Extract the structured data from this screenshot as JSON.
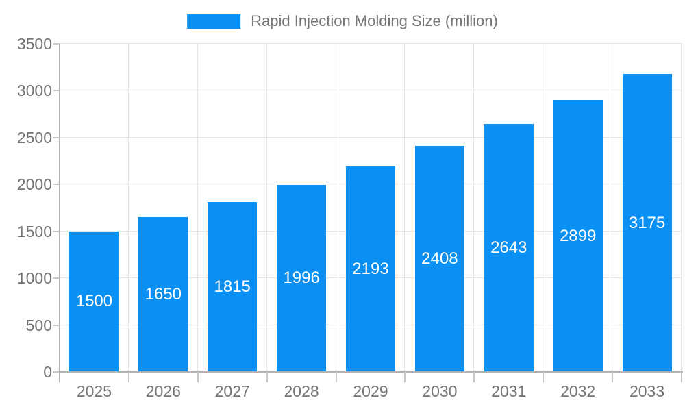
{
  "chart_data": {
    "type": "bar",
    "title": "Rapid Injection Molding Size (million)",
    "categories": [
      "2025",
      "2026",
      "2027",
      "2028",
      "2029",
      "2030",
      "2031",
      "2032",
      "2033"
    ],
    "values": [
      1500,
      1650,
      1815,
      1996,
      2193,
      2408,
      2643,
      2899,
      3175
    ],
    "xlabel": "",
    "ylabel": "",
    "ylim": [
      0,
      3500
    ],
    "yticks": [
      0,
      500,
      1000,
      1500,
      2000,
      2500,
      3000,
      3500
    ],
    "grid": true,
    "legend_position": "top-center",
    "colors": {
      "bar": "#0a90f2",
      "value_label": "#ffffff",
      "axis_text": "#757575",
      "grid_line": "#e4e4e4",
      "axis_line": "#b3b3b3",
      "tick_mark": "#c9c9c9"
    }
  }
}
